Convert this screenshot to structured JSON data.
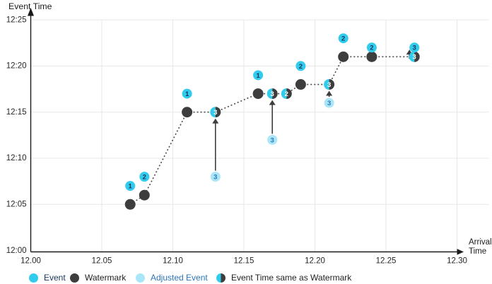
{
  "chart": {
    "y_axis_title": "Event Time",
    "x_axis_title_line1": "Arrival",
    "x_axis_title_line2": "Time",
    "y_ticks": [
      "12:00",
      "12:05",
      "12:10",
      "12:15",
      "12:20",
      "12:25"
    ],
    "x_ticks": [
      "12.00",
      "12.05",
      "12.10",
      "12.15",
      "12.20",
      "12.25",
      "12.30"
    ]
  },
  "legend": {
    "items": [
      {
        "label": "Event",
        "swatch": "event",
        "label_color": "#16365C"
      },
      {
        "label": "Watermark",
        "swatch": "watermark",
        "label_color": "#1F1F1F"
      },
      {
        "label": "Adjusted Event",
        "swatch": "adjusted",
        "label_color": "#2E75B6"
      },
      {
        "label": "Event Time same as Watermark",
        "swatch": "same",
        "label_color": "#1F1F1F"
      }
    ]
  },
  "chart_data": {
    "type": "scatter",
    "title": "",
    "xlabel": "Arrival Time",
    "ylabel": "Event Time",
    "x_range": [
      "12.00",
      "12.30"
    ],
    "y_range": [
      "12:00",
      "12:25"
    ],
    "grid": true,
    "legend_position": "bottom",
    "watermark_line": [
      {
        "arrival": "12.07",
        "event_time": "12:05"
      },
      {
        "arrival": "12.08",
        "event_time": "12:06"
      },
      {
        "arrival": "12.11",
        "event_time": "12:15"
      },
      {
        "arrival": "12.13",
        "event_time": "12:15"
      },
      {
        "arrival": "12.16",
        "event_time": "12:17"
      },
      {
        "arrival": "12.17",
        "event_time": "12:17"
      },
      {
        "arrival": "12.18",
        "event_time": "12:17"
      },
      {
        "arrival": "12.19",
        "event_time": "12:18"
      },
      {
        "arrival": "12.21",
        "event_time": "12:18"
      },
      {
        "arrival": "12.22",
        "event_time": "12:21"
      },
      {
        "arrival": "12.24",
        "event_time": "12:21"
      },
      {
        "arrival": "12.27",
        "event_time": "12:21"
      }
    ],
    "watermark_markers": [
      {
        "arrival": "12.07",
        "event_time": "12:05"
      },
      {
        "arrival": "12.08",
        "event_time": "12:06"
      },
      {
        "arrival": "12.11",
        "event_time": "12:15"
      },
      {
        "arrival": "12.16",
        "event_time": "12:17"
      },
      {
        "arrival": "12.19",
        "event_time": "12:18"
      },
      {
        "arrival": "12.22",
        "event_time": "12:21"
      },
      {
        "arrival": "12.24",
        "event_time": "12:21"
      }
    ],
    "events": [
      {
        "id": "1",
        "arrival": "12.07",
        "event_time": "12:07"
      },
      {
        "id": "2",
        "arrival": "12.08",
        "event_time": "12:08"
      },
      {
        "id": "1",
        "arrival": "12.11",
        "event_time": "12:17"
      },
      {
        "id": "1",
        "arrival": "12.16",
        "event_time": "12:19"
      },
      {
        "id": "2",
        "arrival": "12.19",
        "event_time": "12:20"
      },
      {
        "id": "2",
        "arrival": "12.22",
        "event_time": "12:23"
      },
      {
        "id": "2",
        "arrival": "12.24",
        "event_time": "12:22"
      },
      {
        "id": "3",
        "arrival": "12.27",
        "event_time": "12:22"
      }
    ],
    "same_as_watermark_markers": [
      {
        "id": "3",
        "arrival": "12.13",
        "event_time": "12:15"
      },
      {
        "id": "3",
        "arrival": "12.17",
        "event_time": "12:17"
      },
      {
        "id": "2",
        "arrival": "12.18",
        "event_time": "12:17"
      },
      {
        "id": "3",
        "arrival": "12.21",
        "event_time": "12:18"
      },
      {
        "id": "3",
        "arrival": "12.27",
        "event_time": "12:21"
      }
    ],
    "adjusted_events": [
      {
        "id": "3",
        "arrival": "12.13",
        "original_event_time": "12:08",
        "adjusted_event_time": "12:15"
      },
      {
        "id": "3",
        "arrival": "12.17",
        "original_event_time": "12:12",
        "adjusted_event_time": "12:17"
      },
      {
        "id": "3",
        "arrival": "12.21",
        "original_event_time": "12:16",
        "adjusted_event_time": "12:18"
      }
    ],
    "late_arrival_arrow": {
      "arrival": "12.27",
      "from_event_time": "12:21",
      "to_event_time": "12:22"
    }
  },
  "colors": {
    "event": "#31CBEC",
    "watermark": "#3D3D3D",
    "adjusted_event": "#A9E7F8",
    "grid": "#E7E7E7",
    "axis": "#1A1A1A",
    "watermark_line": "#4A4A4A",
    "arrow": "#3D3D3D",
    "event_digit": "#16365C",
    "adjusted_digit": "#2E75B6",
    "same_digit": "#FFFFFF",
    "tick_text": "#262626"
  }
}
